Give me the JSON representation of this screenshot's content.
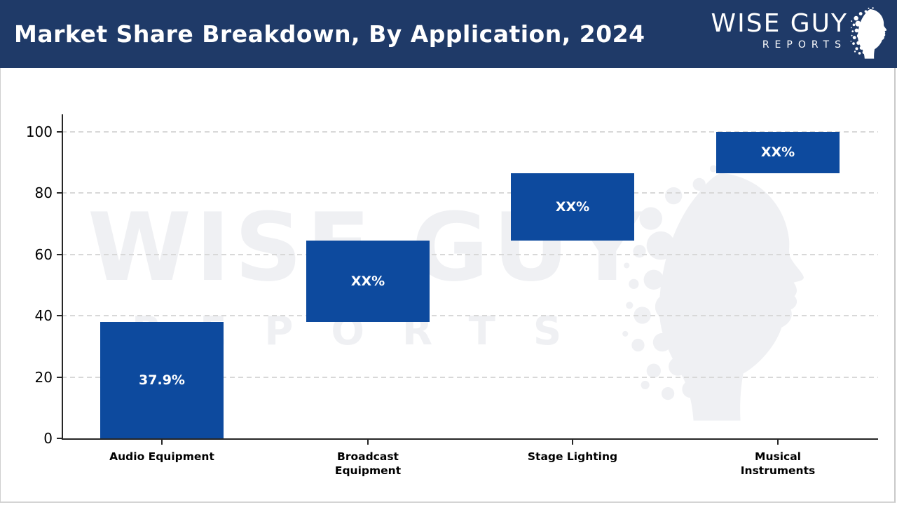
{
  "header": {
    "title": "Market Share Breakdown, By Application, 2024",
    "logo": {
      "primary": "WISE GUY",
      "secondary": "REPORTS"
    }
  },
  "watermark": {
    "primary": "WISE GUY",
    "secondary": "REPORTS"
  },
  "colors": {
    "header_bg": "#1f3a68",
    "bar": "#0d4a9e",
    "grid": "#d8d8d8",
    "axis": "#262626",
    "watermark": "#eff0f3",
    "bar_label": "#ffffff"
  },
  "chart_data": {
    "type": "bar",
    "subtype": "waterfall-floating-bars",
    "title": "Market Share Breakdown, By Application, 2024",
    "categories": [
      "Audio Equipment",
      "Broadcast Equipment",
      "Stage Lighting",
      "Musical Instruments"
    ],
    "categories_lines": [
      [
        "Audio Equipment"
      ],
      [
        "Broadcast",
        "Equipment"
      ],
      [
        "Stage Lighting"
      ],
      [
        "Musical",
        "Instruments"
      ]
    ],
    "segments": [
      {
        "category": "Audio Equipment",
        "start": 0,
        "end": 37.9,
        "label": "37.9%"
      },
      {
        "category": "Broadcast Equipment",
        "start": 37.9,
        "end": 64.5,
        "label": "XX%"
      },
      {
        "category": "Stage Lighting",
        "start": 64.5,
        "end": 86.4,
        "label": "XX%"
      },
      {
        "category": "Musical Instruments",
        "start": 86.4,
        "end": 100,
        "label": "XX%"
      }
    ],
    "ylabel": "",
    "xlabel": "",
    "yticks": [
      0,
      20,
      40,
      60,
      80,
      100
    ],
    "ylim": [
      0,
      106
    ],
    "grid": "dashed-horizontal",
    "legend": "none"
  }
}
